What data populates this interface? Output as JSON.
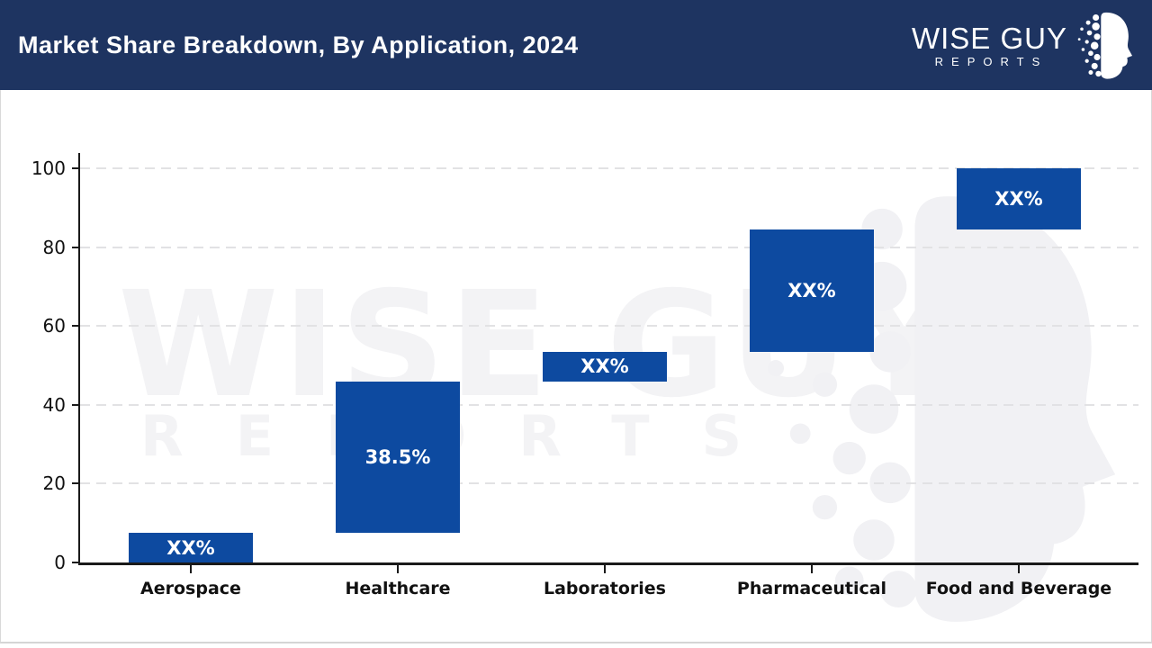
{
  "header": {
    "title": "Market Share Breakdown, By Application, 2024",
    "bg_color": "#1e3461",
    "logo": {
      "line1": "WISE GUY",
      "line2": "REPORTS"
    }
  },
  "watermark": {
    "line1": "WISE GUY",
    "line2": "REPORTS"
  },
  "chart_data": {
    "type": "bar",
    "subtype": "waterfall",
    "title": "Market Share Breakdown, By Application, 2024",
    "categories": [
      "Aerospace",
      "Healthcare",
      "Laboratories",
      "Pharmaceutical",
      "Food and Beverage"
    ],
    "series": [
      {
        "name": "Market Share (%)",
        "segments": [
          {
            "category": "Aerospace",
            "start": 0,
            "end": 7.5,
            "label": "XX%"
          },
          {
            "category": "Healthcare",
            "start": 7.5,
            "end": 46,
            "label": "38.5%"
          },
          {
            "category": "Laboratories",
            "start": 46,
            "end": 53.5,
            "label": "XX%"
          },
          {
            "category": "Pharmaceutical",
            "start": 53.5,
            "end": 84.5,
            "label": "XX%"
          },
          {
            "category": "Food and Beverage",
            "start": 84.5,
            "end": 100,
            "label": "XX%"
          }
        ]
      }
    ],
    "xlabel": "",
    "ylabel": "",
    "ylim": [
      0,
      100
    ],
    "yticks": [
      0,
      20,
      40,
      60,
      80,
      100
    ],
    "grid": "horizontal-dashed",
    "legend": "none",
    "bar_color": "#0d4aa0",
    "bar_label_color": "#ffffff",
    "grid_color": "#e2e2e4",
    "axis_color": "#1a1a1a"
  }
}
